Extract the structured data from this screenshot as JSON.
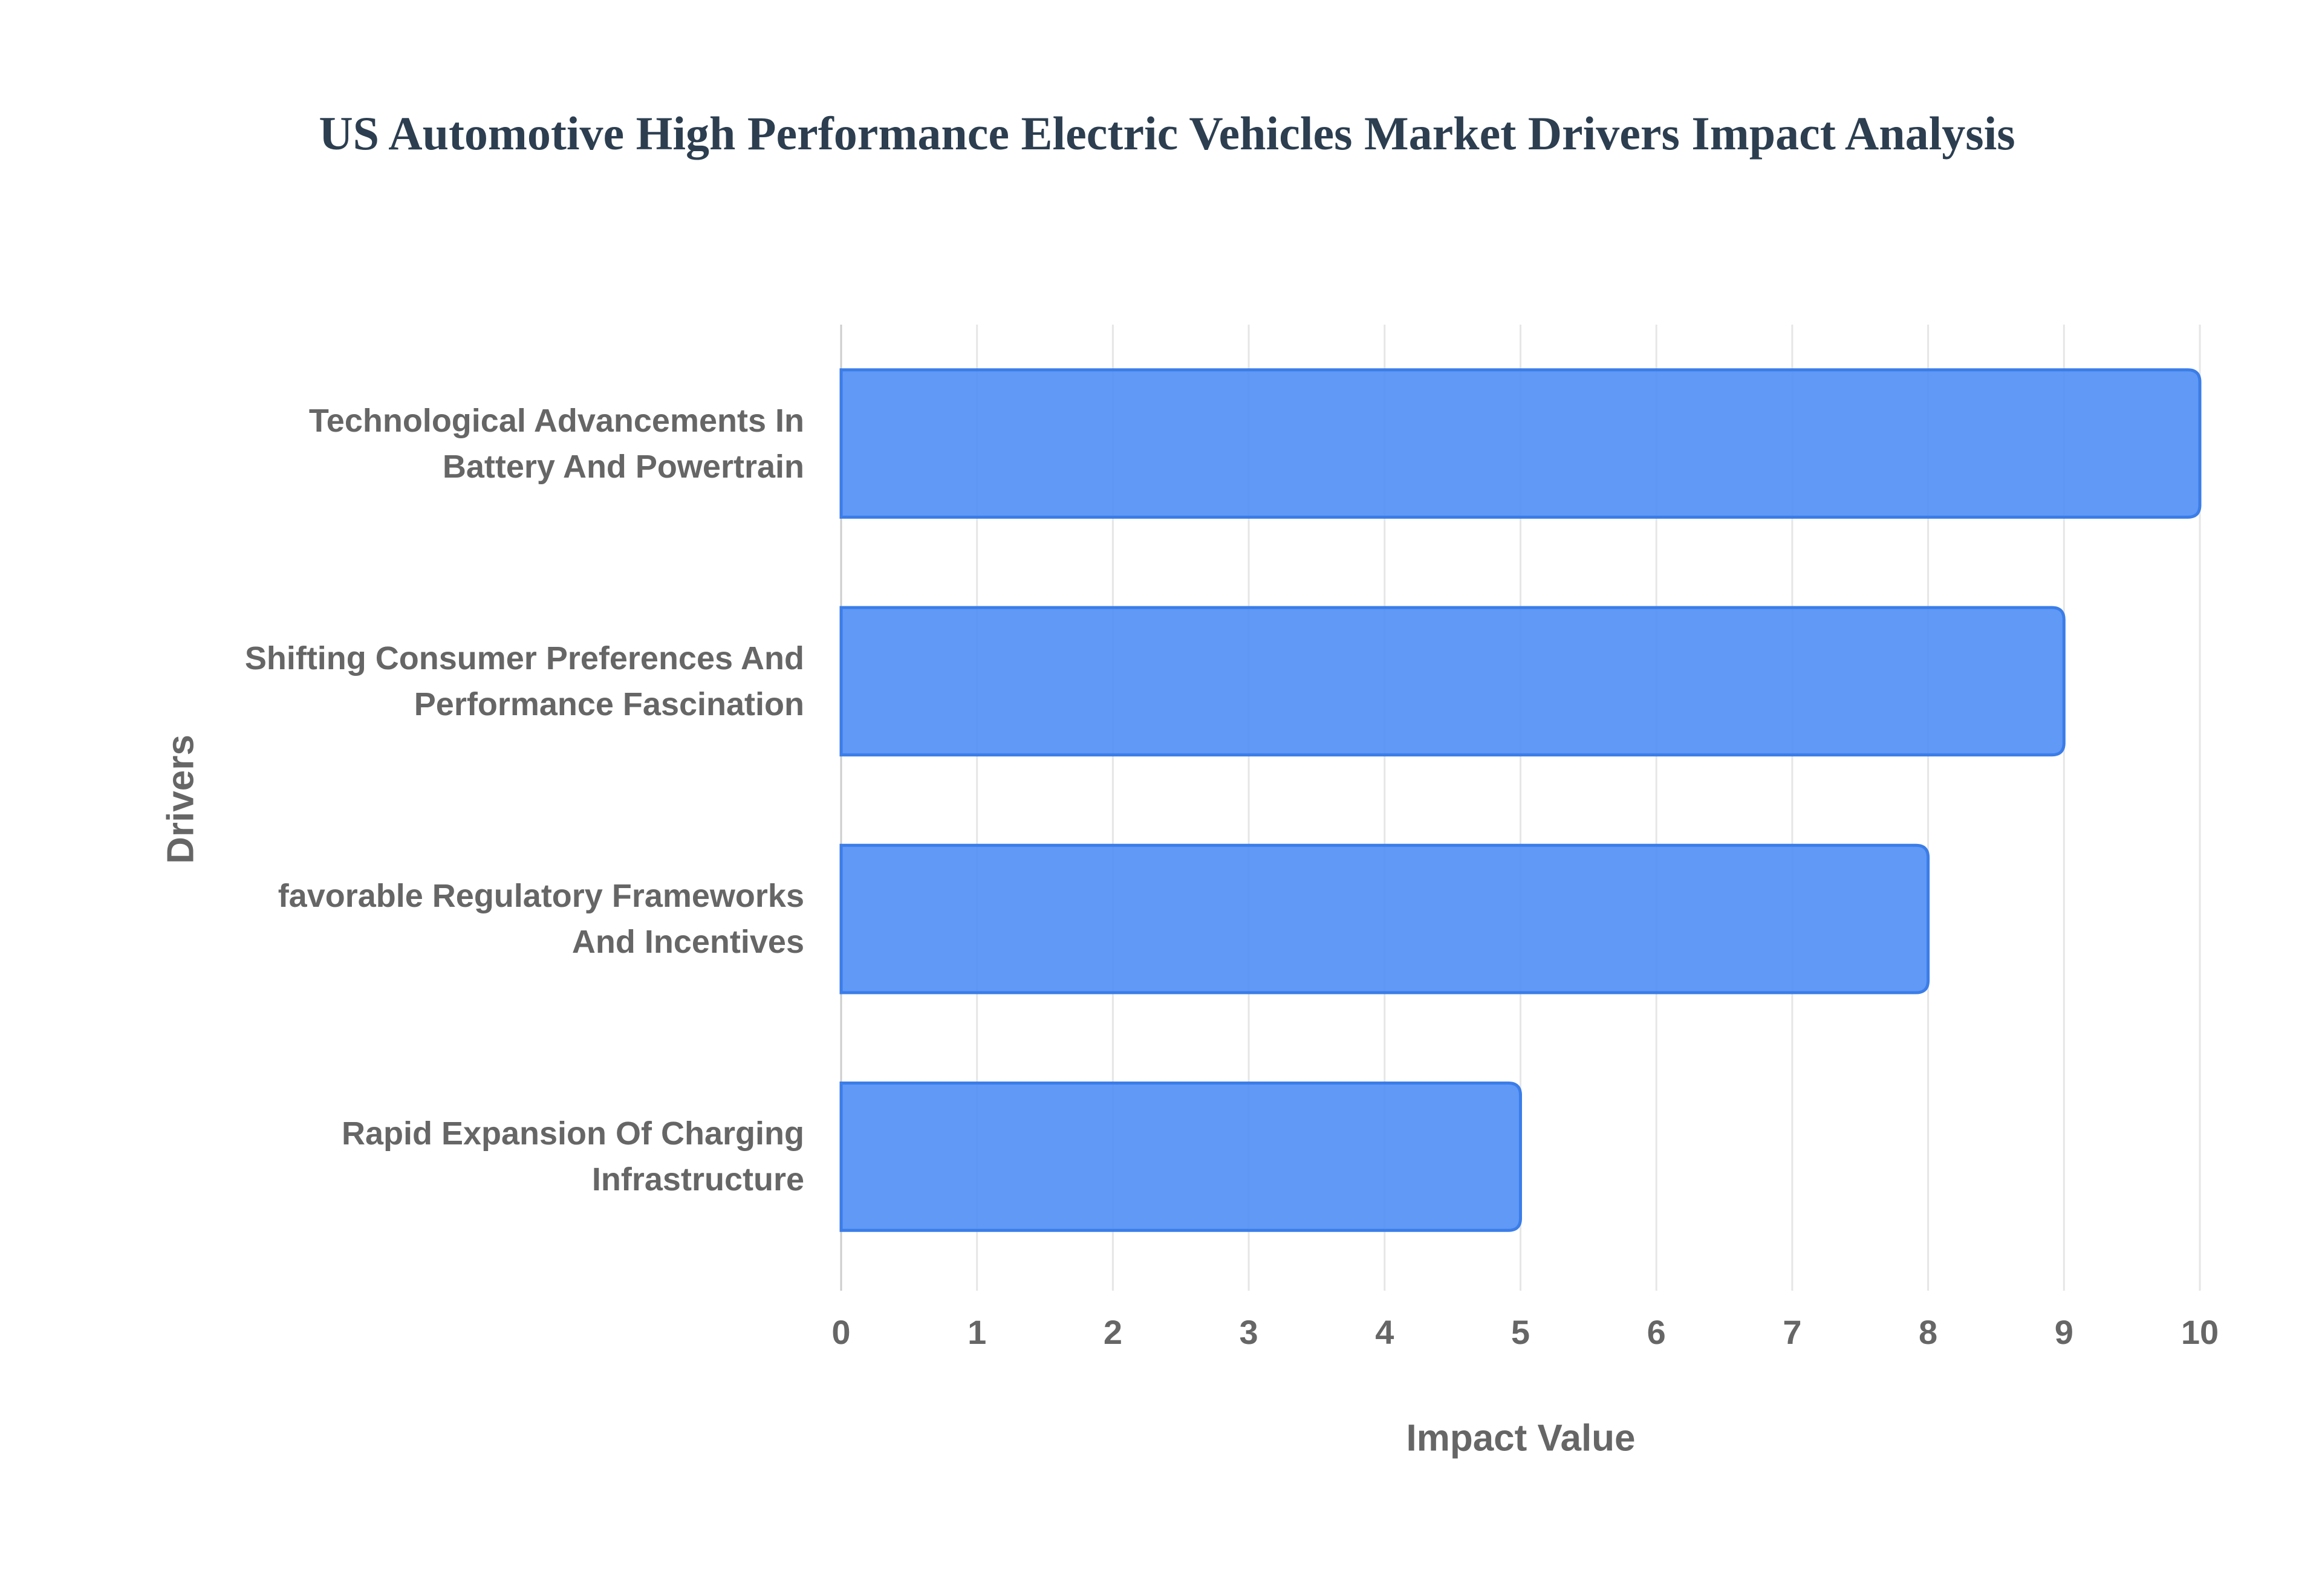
{
  "chart_data": {
    "type": "bar",
    "orientation": "horizontal",
    "title": "US Automotive High Performance Electric Vehicles Market Drivers Impact Analysis",
    "x_label": "Impact Value",
    "y_label": "Drivers",
    "categories": [
      "Technological Advancements In Battery And Powertrain",
      "Shifting Consumer Preferences And Performance Fascination",
      "favorable Regulatory Frameworks And Incentives",
      "Rapid Expansion Of Charging Infrastructure"
    ],
    "values": [
      10,
      9,
      8,
      5
    ],
    "color": "#4f8ef5",
    "edge_color": "#3b7de8",
    "xlim": [
      0,
      10
    ],
    "xticks": [
      0,
      1,
      2,
      3,
      4,
      5,
      6,
      7,
      8,
      9,
      10
    ],
    "grid": true
  }
}
